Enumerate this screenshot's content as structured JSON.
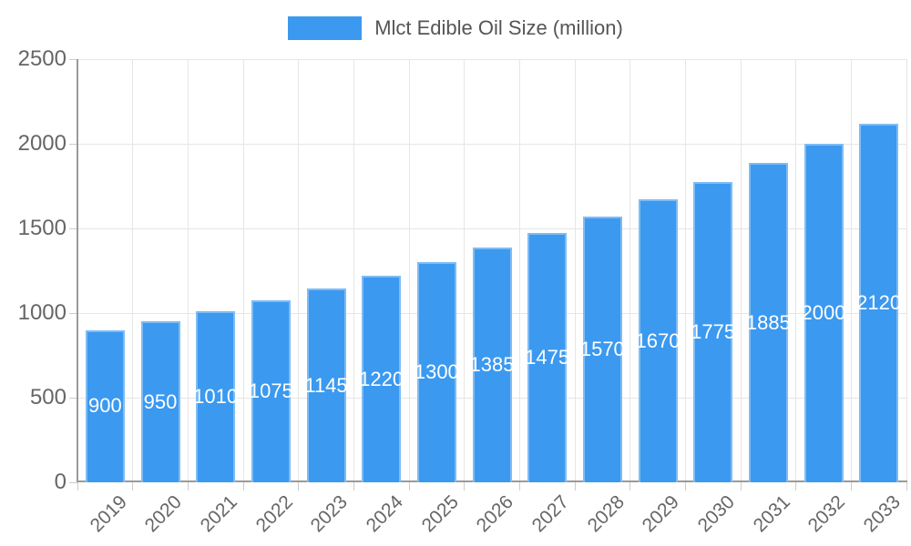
{
  "legend": {
    "label": "Mlct Edible Oil Size (million)"
  },
  "chart_data": {
    "type": "bar",
    "title": "Mlct Edible Oil Size (million)",
    "categories": [
      "2019",
      "2020",
      "2021",
      "2022",
      "2023",
      "2024",
      "2025",
      "2026",
      "2027",
      "2028",
      "2029",
      "2030",
      "2031",
      "2032",
      "2033"
    ],
    "values": [
      900,
      950,
      1010,
      1075,
      1145,
      1220,
      1300,
      1385,
      1475,
      1570,
      1670,
      1775,
      1885,
      2000,
      2120
    ],
    "xlabel": "",
    "ylabel": "",
    "ylim": [
      0,
      2500
    ],
    "yticks": [
      0,
      500,
      1000,
      1500,
      2000,
      2500
    ],
    "grid": true,
    "legend_position": "top",
    "value_labels": "centered-inside-bars-white",
    "x_label_rotation_deg": -45,
    "colors": {
      "bar": "#3b99f0",
      "bar_border": "rgba(255,255,255,0.35)",
      "grid": "#e6e6e6",
      "axis": "#9a9a9a",
      "tick": "#cccccc",
      "label": "#666666",
      "value_label": "#ffffff",
      "title": "#555555"
    }
  }
}
